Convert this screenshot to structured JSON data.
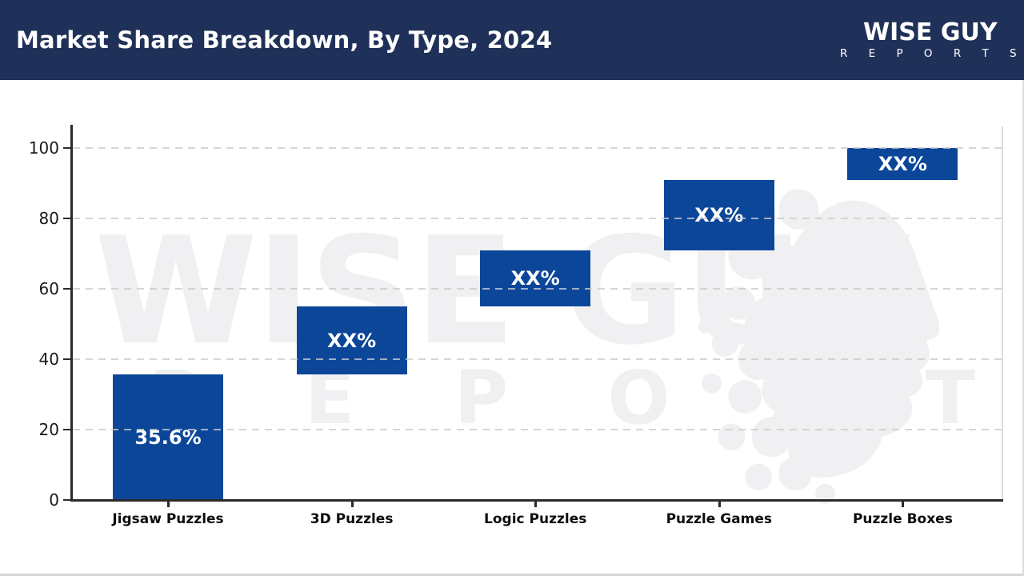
{
  "header": {
    "title": "Market Share Breakdown, By Type, 2024",
    "bg_color": "#203159",
    "logo": {
      "name": "Wise Guy Reports logo",
      "line1": "WISE GUY",
      "line2": "R E P O R T S"
    }
  },
  "watermark": {
    "line1": "WISE GUY",
    "line2": "R E P O R T S"
  },
  "chart_data": {
    "type": "bar",
    "variant": "floating-segment (waterfall-style) market share bars",
    "title": "Market Share Breakdown, By Type, 2024",
    "categories": [
      "Jigsaw Puzzles",
      "3D Puzzles",
      "Logic Puzzles",
      "Puzzle Games",
      "Puzzle Boxes"
    ],
    "series": [
      {
        "name": "Market share (%)",
        "segments": [
          [
            0,
            35.6
          ],
          [
            35.6,
            55
          ],
          [
            55,
            71
          ],
          [
            71,
            91
          ],
          [
            91,
            100
          ]
        ]
      }
    ],
    "bar_value_labels": [
      "35.6%",
      "XX%",
      "XX%",
      "XX%",
      "XX%"
    ],
    "xlabel": "",
    "ylabel": "",
    "yticks": [
      0,
      20,
      40,
      60,
      80,
      100
    ],
    "ylim": [
      0,
      100
    ],
    "grid": "horizontal dashed, drawn over bars",
    "legend": "none",
    "bar_color": "#0c4699",
    "bar_label_color": "#ffffff",
    "axis_color": "#2b2b2b",
    "grid_color": "#d9d9d9"
  }
}
